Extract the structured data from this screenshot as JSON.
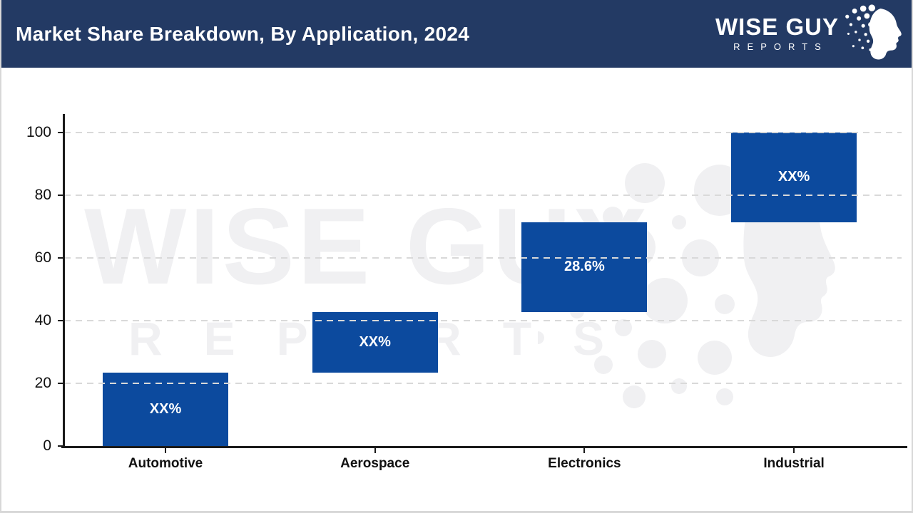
{
  "header": {
    "title": "Market Share Breakdown, By Application, 2024",
    "logo": {
      "line1": "WISE GUY",
      "line2": "REPORTS"
    }
  },
  "watermark": {
    "line1": "WISE GUY",
    "line2": "REPORTS"
  },
  "colors": {
    "header_bg": "#233a64",
    "bar": "#0c4a9e",
    "grid": "#d9d9d9",
    "axis": "#1a1a1a",
    "watermark": "#f0f0f2",
    "bar_label": "#ffffff"
  },
  "chart_data": {
    "type": "bar",
    "subtype": "waterfall",
    "title": "Market Share Breakdown, By Application, 2024",
    "categories": [
      "Automotive",
      "Aerospace",
      "Electronics",
      "Industrial"
    ],
    "segments": [
      {
        "category": "Automotive",
        "start": 0,
        "end": 23.5,
        "label": "XX%"
      },
      {
        "category": "Aerospace",
        "start": 23.5,
        "end": 42.8,
        "label": "XX%"
      },
      {
        "category": "Electronics",
        "start": 42.8,
        "end": 71.4,
        "label": "28.6%"
      },
      {
        "category": "Industrial",
        "start": 71.4,
        "end": 100,
        "label": "XX%"
      }
    ],
    "xlabel": "",
    "ylabel": "",
    "yticks": [
      0,
      20,
      40,
      60,
      80,
      100
    ],
    "ylim": [
      0,
      105
    ],
    "grid": "horizontal-dashed",
    "legend": "none",
    "bar_color": "#0c4a9e"
  }
}
